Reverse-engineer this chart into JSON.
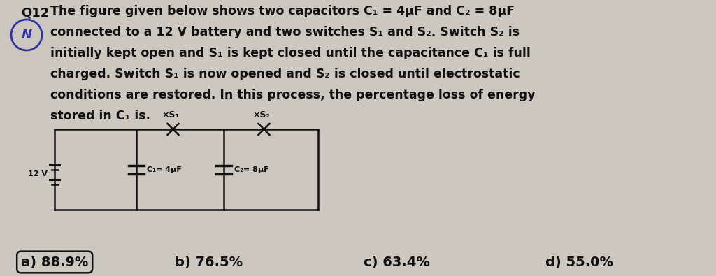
{
  "background_color": "#ccc8c0",
  "question_number": "Q12",
  "question_text_lines": [
    "The figure given below shows two capacitors C₁ = 4μF and C₂ = 8μF",
    "connected to a 12 V battery and two switches S₁ and S₂. Switch S₂ is",
    "initially kept open and S₁ is kept closed until the capacitance C₁ is full",
    "charged. Switch S₁ is now opened and S₂ is closed until electrostatic",
    "conditions are restored. In this process, the percentage loss of energy",
    "stored in C₁ is."
  ],
  "options": [
    {
      "label": "a)",
      "text": "88.9%",
      "highlighted": true
    },
    {
      "label": "b)",
      "text": "76.5%",
      "highlighted": false
    },
    {
      "label": "c)",
      "text": "63.4%",
      "highlighted": false
    },
    {
      "label": "d)",
      "text": "55.0%",
      "highlighted": false
    }
  ],
  "circuit": {
    "battery_label": "12 V",
    "C1_label": "C₁= 4μF",
    "C2_label": "C₂= 8μF",
    "S1_label": "×S₁",
    "S2_label": "×S₂"
  },
  "marker_label": "N",
  "font_color": "#111111",
  "circle_color": "#3333aa",
  "text_fontsize": 12.5,
  "options_fontsize": 14,
  "qnum_fontsize": 13
}
